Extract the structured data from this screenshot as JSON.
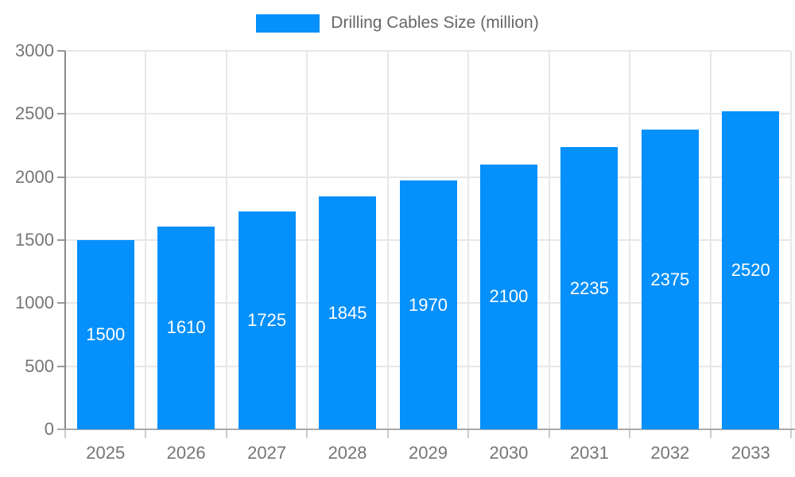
{
  "chart_data": {
    "type": "bar",
    "title": "",
    "legend": "Drilling Cables Size (million)",
    "legend_position": "top",
    "categories": [
      "2025",
      "2026",
      "2027",
      "2028",
      "2029",
      "2030",
      "2031",
      "2032",
      "2033"
    ],
    "values": [
      1500,
      1610,
      1725,
      1845,
      1970,
      2100,
      2235,
      2375,
      2520
    ],
    "xlabel": "",
    "ylabel": "",
    "ylim": [
      0,
      3000
    ],
    "yticks": [
      0,
      500,
      1000,
      1500,
      2000,
      2500,
      3000
    ],
    "grid": true,
    "bar_color": "#0590fb",
    "bar_label_color": "#ffffff",
    "axis_label_color": "#757575",
    "legend_text_color": "#666666",
    "gridline_color": "#e7e7e7",
    "background_color": "#ffffff"
  }
}
